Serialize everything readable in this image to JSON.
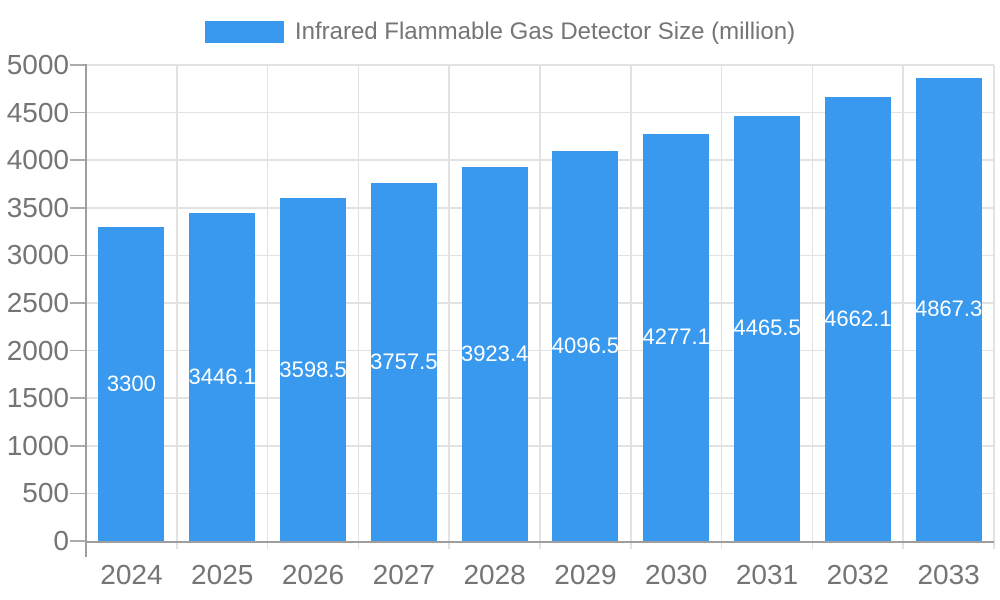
{
  "legend": {
    "label": "Infrared Flammable Gas Detector Size (million)"
  },
  "chart_data": {
    "type": "bar",
    "title": "Infrared Flammable Gas Detector Size (million)",
    "categories": [
      "2024",
      "2025",
      "2026",
      "2027",
      "2028",
      "2029",
      "2030",
      "2031",
      "2032",
      "2033"
    ],
    "values": [
      3300,
      3446.1,
      3598.5,
      3757.5,
      3923.4,
      4096.5,
      4277.1,
      4465.5,
      4662.1,
      4867.3
    ],
    "bar_labels": [
      "3300",
      "3446.1",
      "3598.5",
      "3757.5",
      "3923.4",
      "4096.5",
      "4277.1",
      "4465.5",
      "4662.1",
      "4867.3"
    ],
    "xlabel": "",
    "ylabel": "",
    "ylim": [
      0,
      5000
    ],
    "ytick_step": 500,
    "yticks": [
      0,
      500,
      1000,
      1500,
      2000,
      2500,
      3000,
      3500,
      4000,
      4500,
      5000
    ],
    "grid": true,
    "legend_position": "top",
    "colors": {
      "bar": "#3899EE",
      "bar_label_text": "#FFFFFF",
      "axis_text": "#757575",
      "gridline": "#E2E2E2",
      "axis_line": "#9E9E9E",
      "tick": "#ABABAB",
      "background": "#FFFFFF"
    }
  }
}
